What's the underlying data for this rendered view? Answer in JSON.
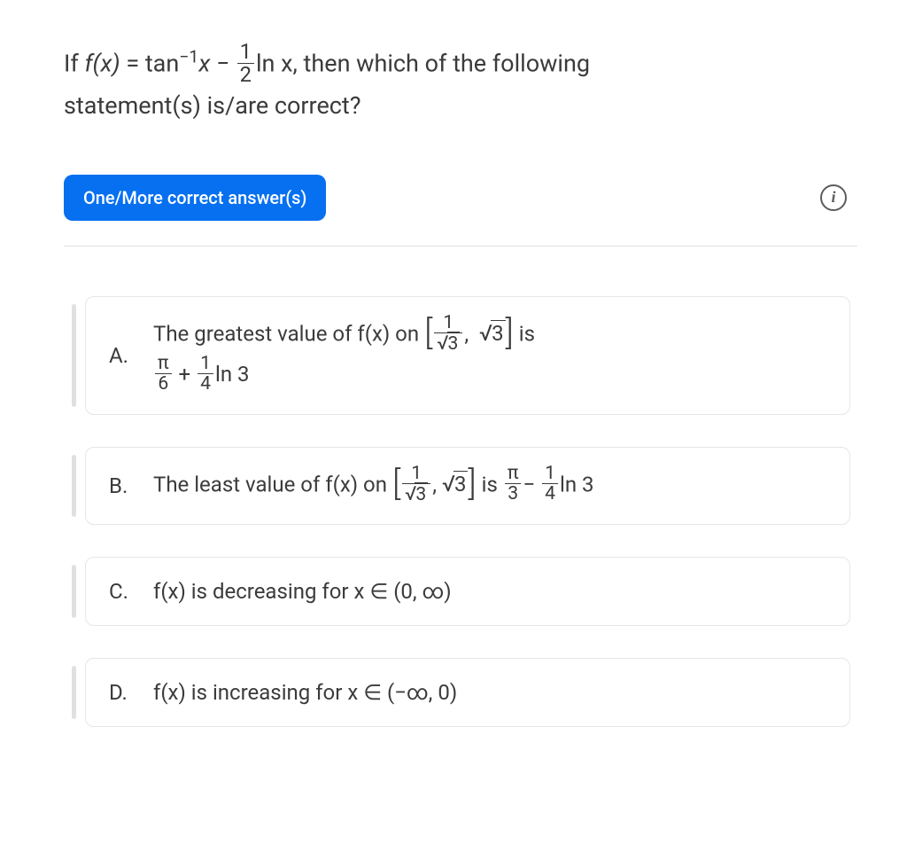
{
  "question": {
    "prefix": "If ",
    "fx": "f(x)",
    "eq": " = tan",
    "sup": "−1",
    "xminus": "x − ",
    "frac_num": "1",
    "frac_den": "2",
    "lnx": "ln x",
    "suffix1": ", then which of the following",
    "line2": "statement(s) is/are correct?"
  },
  "badge": {
    "label": "One/More correct answer(s)"
  },
  "info": {
    "glyph": "i"
  },
  "options": {
    "A": {
      "letter": "A.",
      "l1a": "The greatest value of ",
      "l1b": "f(x)",
      "l1c": " on ",
      "brL": "[",
      "f1n": "1",
      "f1d": "3",
      "comma": ", ",
      "r1": "3",
      "brR": "]",
      "l1d": " is",
      "l2_f1n": "π",
      "l2_f1d": "6",
      "plus": " + ",
      "l2_f2n": "1",
      "l2_f2d": "4",
      "ln3": "ln 3"
    },
    "B": {
      "letter": "B.",
      "t1": "The least value of ",
      "fx": "f(x)",
      "t2": " on ",
      "brL": "[",
      "f1n": "1",
      "f1d": "3",
      "comma": ", ",
      "r1": "3",
      "brR": "]",
      "t3": " is ",
      "f2n": "π",
      "f2d": "3",
      "minus": "− ",
      "f3n": "1",
      "f3d": "4",
      "ln3": "ln 3"
    },
    "C": {
      "letter": "C.",
      "fx": "f(x)",
      "t": " is decreasing for ",
      "xin": "x ∈ (0, ∞)"
    },
    "D": {
      "letter": "D.",
      "fx": "f(x)",
      "t": " is increasing for ",
      "xin": "x ∈ (−∞, 0)"
    }
  }
}
